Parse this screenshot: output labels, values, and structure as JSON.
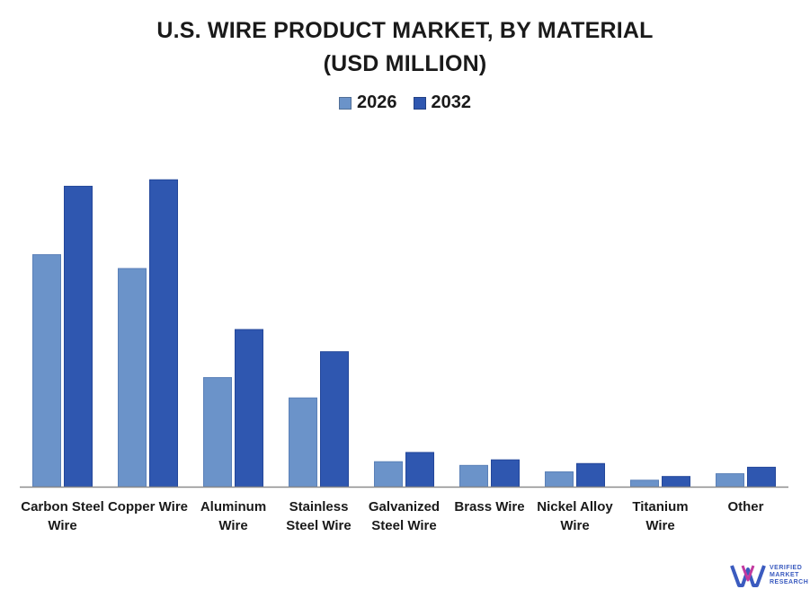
{
  "chart_data": {
    "type": "bar",
    "title_lines": [
      "U.S. WIRE PRODUCT MARKET, BY MATERIAL",
      "(USD MILLION)"
    ],
    "categories": [
      [
        "Carbon Steel",
        "Wire"
      ],
      [
        "Copper Wire"
      ],
      [
        "Aluminum",
        "Wire"
      ],
      [
        "Stainless",
        "Steel Wire"
      ],
      [
        "Galvanized",
        "Steel Wire"
      ],
      [
        "Brass Wire"
      ],
      [
        "Nickel Alloy",
        "Wire"
      ],
      [
        "Titanium",
        "Wire"
      ],
      [
        "Other"
      ]
    ],
    "series": [
      {
        "name": "2026",
        "color": "#6b93c9",
        "values": [
          251,
          236,
          118,
          96,
          27,
          23,
          16,
          7,
          14
        ]
      },
      {
        "name": "2032",
        "color": "#2f57b0",
        "values": [
          325,
          332,
          170,
          146,
          37,
          29,
          25,
          11,
          21
        ]
      }
    ],
    "ylim": [
      0,
      340
    ],
    "grid": false,
    "legend_position": "top-center"
  },
  "logo": {
    "line1": "VERIFIED",
    "line2": "MARKET",
    "line3": "RESEARCH",
    "colors": [
      "#3b5bbf",
      "#c23aa0"
    ]
  }
}
